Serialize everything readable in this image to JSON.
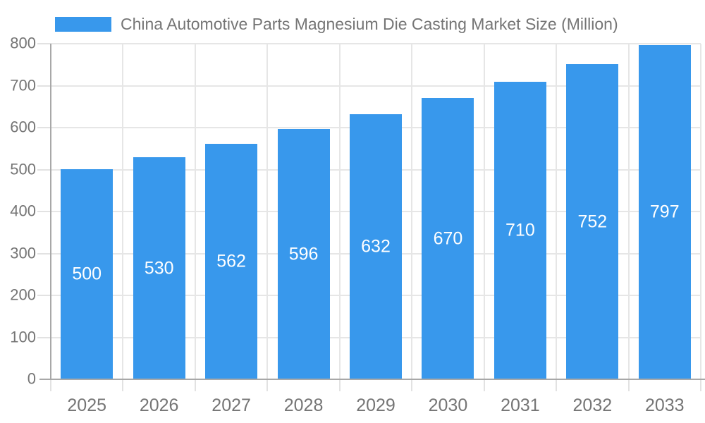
{
  "legend": {
    "position": "top",
    "items": [
      {
        "label": "China Automotive Parts Magnesium Die Casting Market Size (Million)",
        "color": "#3898EC"
      }
    ]
  },
  "chart_data": {
    "type": "bar",
    "title": "China Automotive Parts Magnesium Die Casting Market Size (Million)",
    "categories": [
      "2025",
      "2026",
      "2027",
      "2028",
      "2029",
      "2030",
      "2031",
      "2032",
      "2033"
    ],
    "series": [
      {
        "name": "China Automotive Parts Magnesium Die Casting Market Size (Million)",
        "values": [
          500,
          530,
          562,
          596,
          632,
          670,
          710,
          752,
          797
        ],
        "color": "#3898EC"
      }
    ],
    "value_labels": [
      "500",
      "530",
      "562",
      "596",
      "632",
      "670",
      "710",
      "752",
      "797"
    ],
    "xlabel": "",
    "ylabel": "",
    "ylim": [
      0,
      800
    ],
    "yticks": [
      0,
      100,
      200,
      300,
      400,
      500,
      600,
      700,
      800
    ],
    "grid": true,
    "legend_position": "top"
  },
  "colors": {
    "bar": "#3898EC",
    "grid_line": "#E6E6E6",
    "tick_line": "#E2E2E2",
    "axis_line": "#A8A8A8",
    "text": "#757575",
    "value_label_text": "#FFFFFF",
    "background": "#FFFFFF"
  }
}
